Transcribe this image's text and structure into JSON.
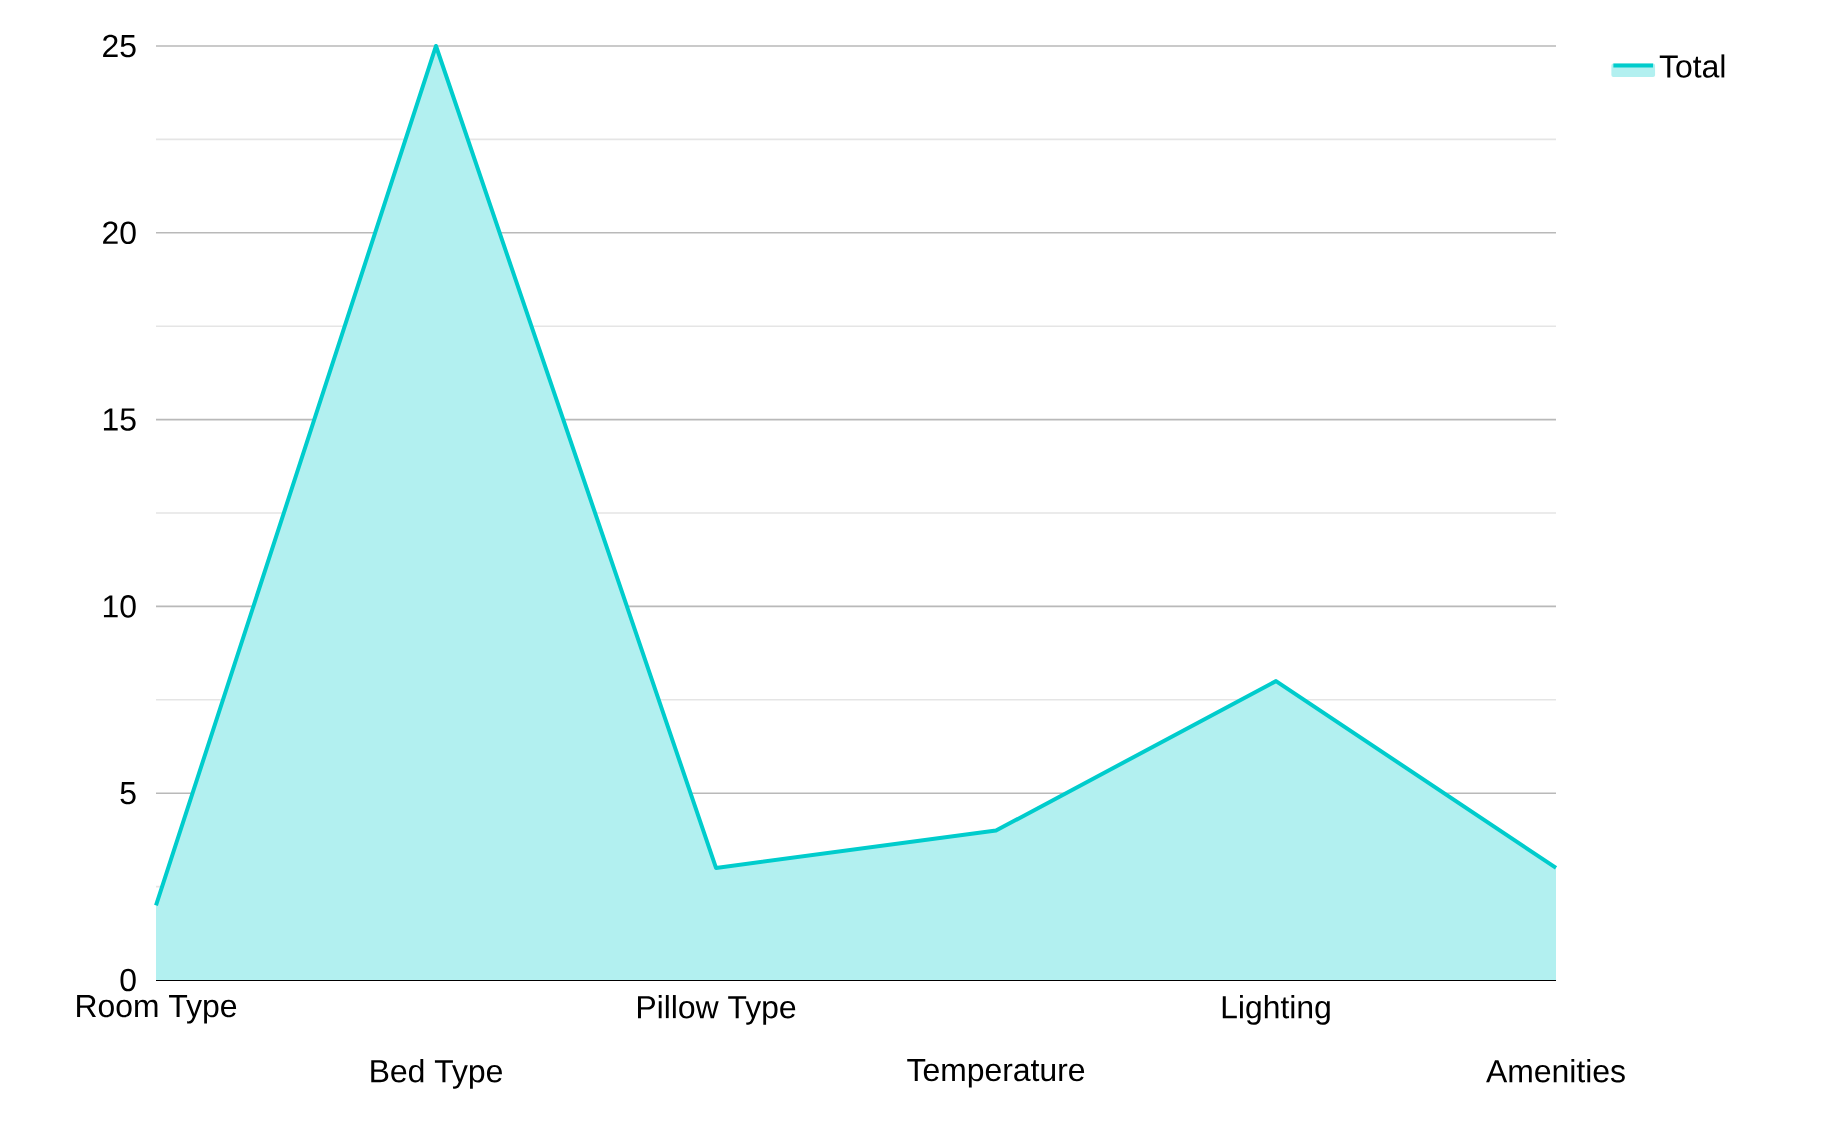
{
  "chart_data": {
    "type": "area",
    "categories": [
      "Room Type",
      "Bed Type",
      "Pillow Type",
      "Temperature",
      "Lighting",
      "Amenities"
    ],
    "series": [
      {
        "name": "Total",
        "color": "#00cccc",
        "values": [
          2,
          25,
          3,
          4,
          8,
          3
        ]
      }
    ],
    "ylim": [
      0,
      25
    ],
    "yticks": [
      0,
      5,
      10,
      15,
      20,
      25
    ],
    "grid": "y",
    "legend": "top right"
  }
}
